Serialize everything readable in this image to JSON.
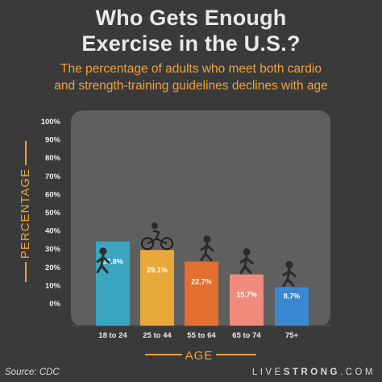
{
  "title_line1": "Who Gets Enough",
  "title_line2": "Exercise in the U.S.?",
  "subtitle_line1": "The percentage of adults who meet both cardio",
  "subtitle_line2": "and strength-training guidelines declines with age",
  "source": "Source: CDC",
  "brand": {
    "pre": "LIVE",
    "bold": "STRONG",
    "post": ".COM"
  },
  "colors": {
    "background": "#3a3a3a",
    "plot_area": "#5f5f5f",
    "accent": "#f0a13a",
    "bars": [
      "#3aa6c0",
      "#e8a93a",
      "#e4702f",
      "#f08a7a",
      "#3a88d0"
    ]
  },
  "chart_data": {
    "type": "bar",
    "xlabel": "AGE",
    "ylabel": "PERCENTAGE",
    "ylim": [
      0,
      100
    ],
    "yticks": [
      0,
      10,
      20,
      30,
      40,
      50,
      60,
      70,
      80,
      90,
      100
    ],
    "ytick_labels": [
      "0%",
      "10%",
      "20%",
      "30%",
      "40%",
      "50%",
      "60%",
      "70%",
      "80%",
      "90%",
      "100%"
    ],
    "categories": [
      "18 to 24",
      "25 to 44",
      "55 to 64",
      "65 to 74",
      "75+"
    ],
    "values": [
      33.8,
      29.1,
      22.7,
      15.7,
      8.7
    ],
    "value_labels": [
      "33.8%",
      "29.1%",
      "22.7%",
      "15.7%",
      "8.7%"
    ],
    "grid": false,
    "legend": "none"
  }
}
